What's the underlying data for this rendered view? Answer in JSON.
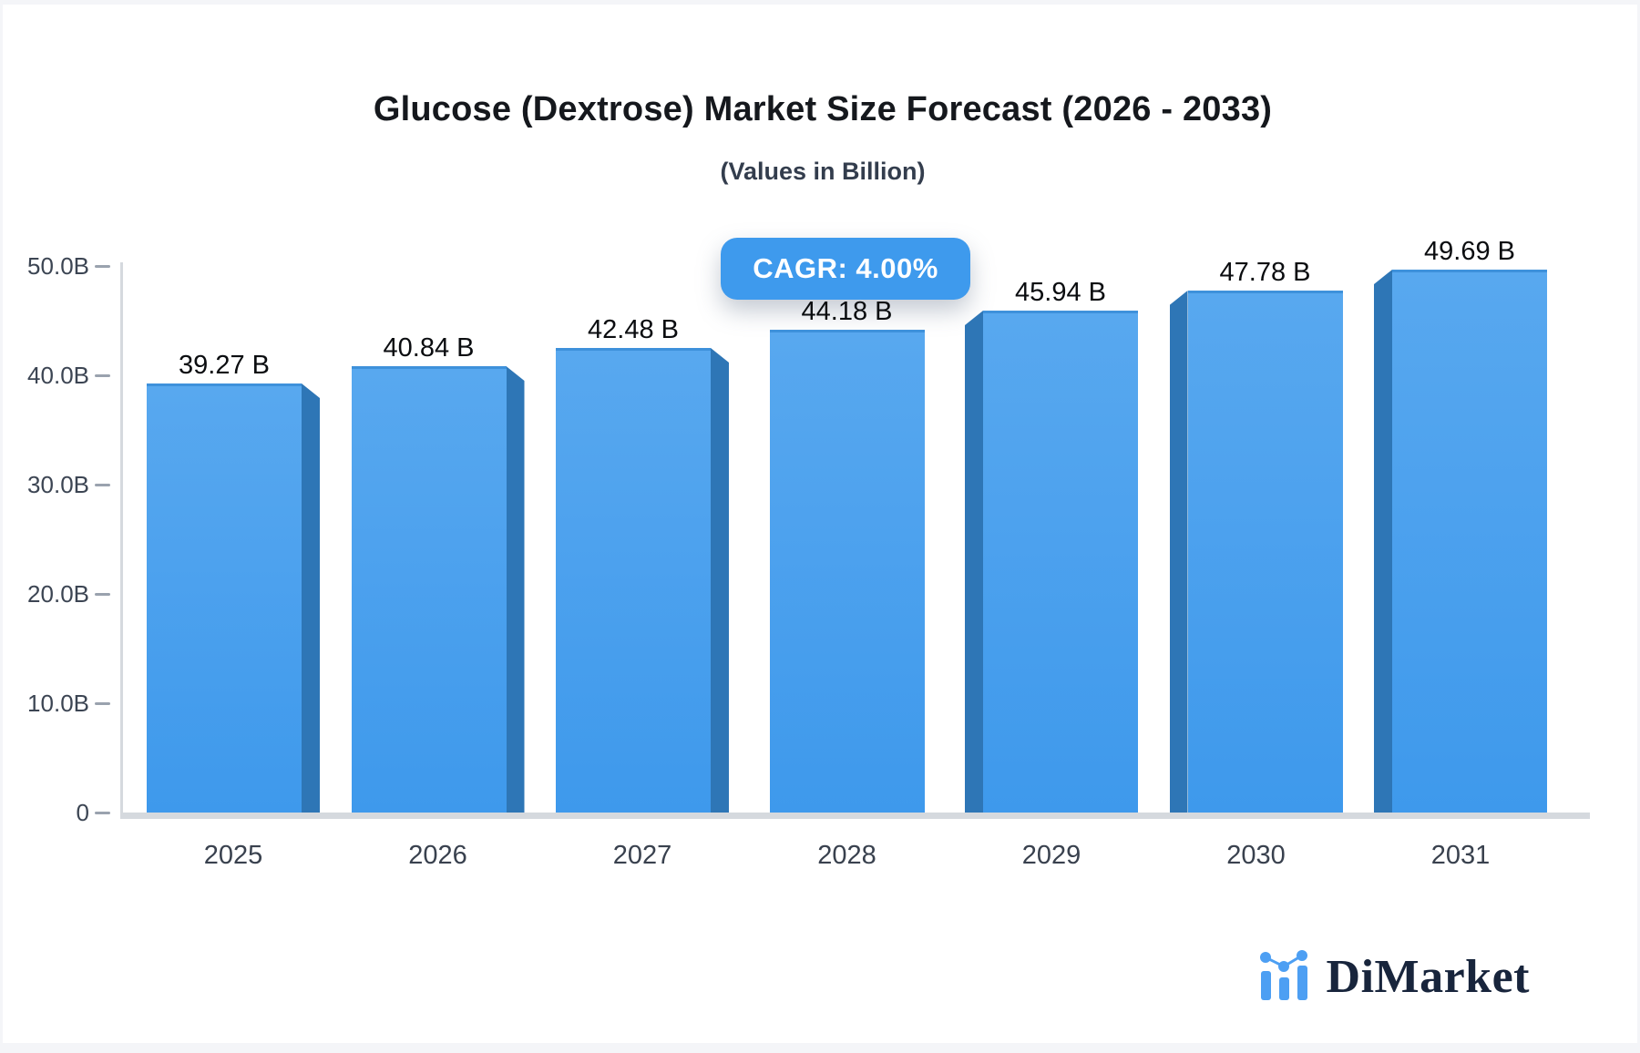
{
  "title": "Glucose (Dextrose) Market Size Forecast (2026 - 2033)",
  "subtitle": "(Values in Billion)",
  "badge": {
    "label": "CAGR: 4.00%"
  },
  "brand": {
    "name": "DiMarket"
  },
  "chart_data": {
    "type": "bar",
    "categories": [
      "2025",
      "2026",
      "2027",
      "2028",
      "2029",
      "2030",
      "2031"
    ],
    "values": [
      39.27,
      40.84,
      42.48,
      44.18,
      45.94,
      47.78,
      49.69
    ],
    "value_labels": [
      "39.27 B",
      "40.84 B",
      "42.48 B",
      "44.18 B",
      "45.94 B",
      "47.78 B",
      "49.69 B"
    ],
    "y_tick_labels": [
      "50.0B",
      "40.0B",
      "30.0B",
      "20.0B",
      "10.0B",
      "0"
    ],
    "y_tick_values": [
      50,
      40,
      30,
      20,
      10,
      0
    ],
    "ylim": [
      0,
      50
    ],
    "xlabel": "",
    "ylabel": "",
    "grid": false,
    "legend": null,
    "bar_style": "3d-beveled",
    "colors": {
      "bar_top": "#58A8EF",
      "bar_bottom": "#3E99EC",
      "bar_edge": "#3E91DB",
      "bar_side": "#2E76B6",
      "axis": "#D5D9DE",
      "tick": "#9AA2AE",
      "axis_label": "#3C4553",
      "x_label": "#39414E",
      "value_label": "#0B0D10",
      "badge_bg": "#3E9AED",
      "badge_text": "#FFFFFF",
      "brand_blue": "#4D9FF3",
      "brand_navy": "#18253C"
    }
  }
}
